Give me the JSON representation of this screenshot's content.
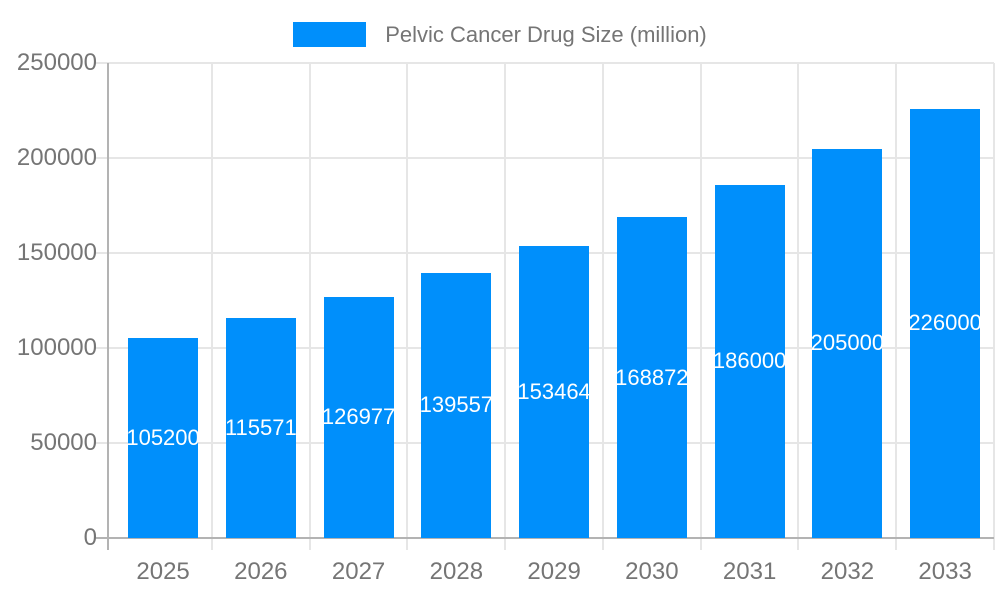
{
  "legend": {
    "label": "Pelvic Cancer Drug Size (million)"
  },
  "chart_data": {
    "type": "bar",
    "title": "Pelvic Cancer Drug Size (million)",
    "series_name": "Pelvic Cancer Drug Size (million)",
    "categories": [
      "2025",
      "2026",
      "2027",
      "2028",
      "2029",
      "2030",
      "2031",
      "2032",
      "2033"
    ],
    "values": [
      105200,
      115571,
      126977,
      139557,
      153464,
      168872,
      186000,
      205000,
      226000
    ],
    "xlabel": "",
    "ylabel": "",
    "ylim": [
      0,
      250000
    ],
    "yticks": [
      0,
      50000,
      100000,
      150000,
      200000,
      250000
    ],
    "grid": true,
    "legend_position": "top",
    "data_labels": "inside-center-white",
    "bar_color": "#008FFB",
    "data_label_color": "#ffffff",
    "axis_text_color": "#757575",
    "grid_color": "#e6e6e6",
    "axis_line_color": "#b3b3b3",
    "background_color": "#ffffff"
  }
}
